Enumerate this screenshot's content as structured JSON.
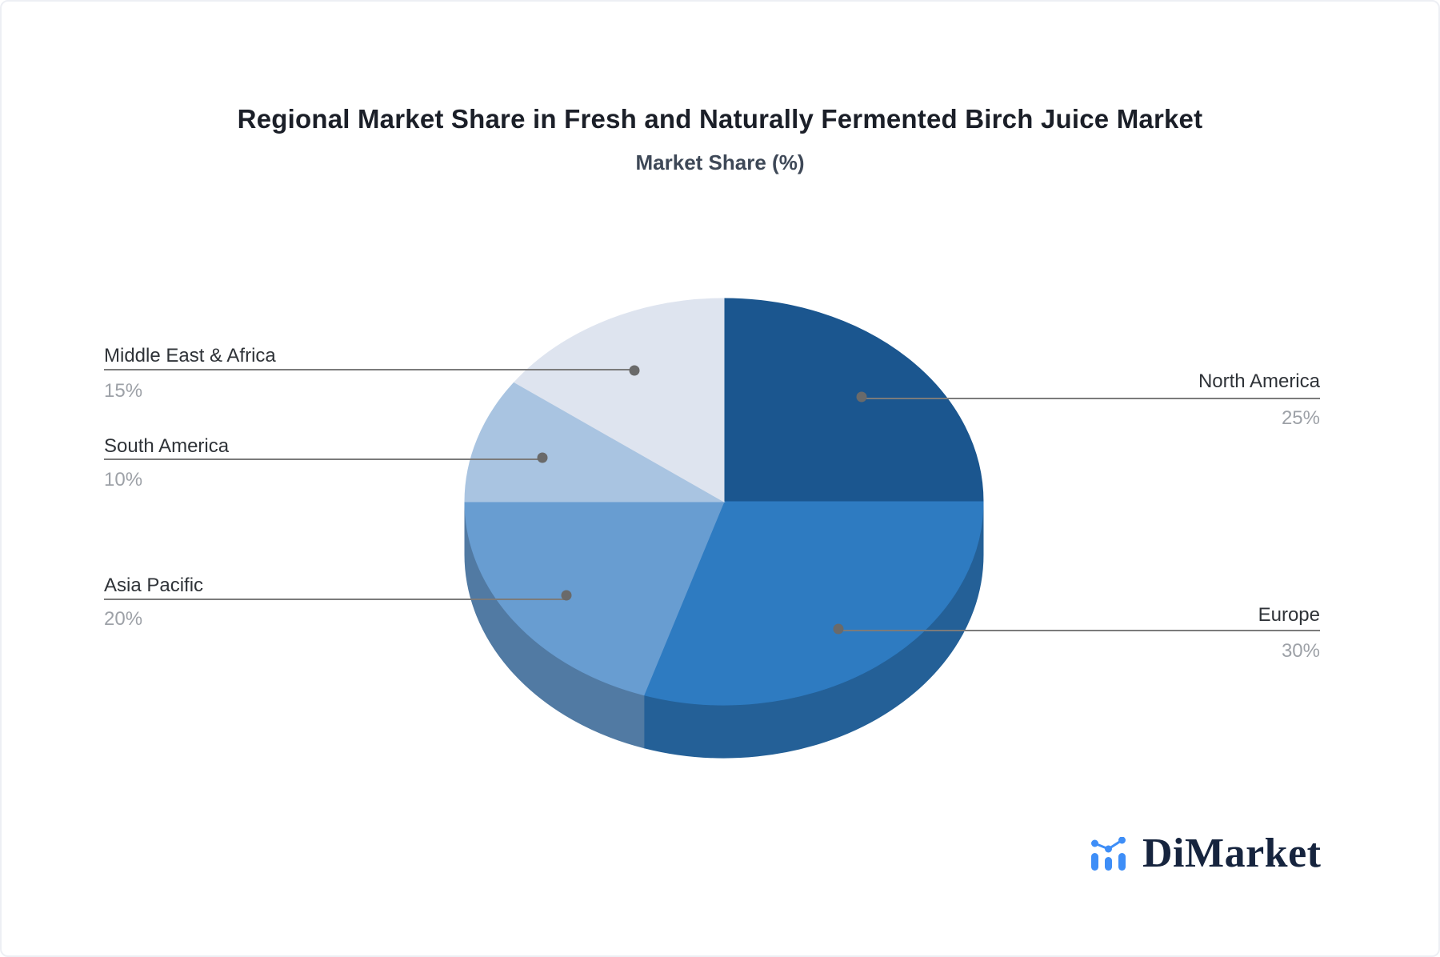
{
  "page": {
    "title": "Regional Market Share in Fresh and Naturally Fermented Birch Juice Market",
    "subtitle": "Market Share (%)"
  },
  "branding": {
    "logo_text": "DiMarket",
    "logo_icon": "bar-line-chart-icon",
    "logo_icon_color": "#3E8EF7",
    "logo_text_color": "#16243E"
  },
  "chart_data": {
    "type": "pie",
    "title": "Regional Market Share in Fresh and Naturally Fermented Birch Juice Market",
    "subtitle": "Market Share (%)",
    "unit": "%",
    "style": "3d",
    "start_angle_deg": 0,
    "direction": "clockwise",
    "legend_position": "none",
    "label_style": "callout-lines-with-dots",
    "slices": [
      {
        "label": "North America",
        "value": 25,
        "display": "25%",
        "color": "#1B568F",
        "label_side": "right"
      },
      {
        "label": "Europe",
        "value": 30,
        "display": "30%",
        "color": "#2E7BC1",
        "label_side": "right"
      },
      {
        "label": "Asia Pacific",
        "value": 20,
        "display": "20%",
        "color": "#689DD1",
        "label_side": "left"
      },
      {
        "label": "South America",
        "value": 10,
        "display": "10%",
        "color": "#A9C4E1",
        "label_side": "left"
      },
      {
        "label": "Middle East & Africa",
        "value": 15,
        "display": "15%",
        "color": "#DEE4EF",
        "label_side": "left"
      }
    ]
  }
}
